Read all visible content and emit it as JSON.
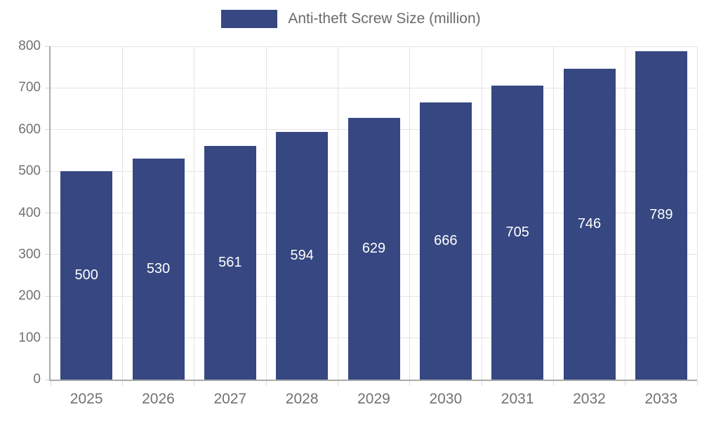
{
  "chart_data": {
    "type": "bar",
    "title": "",
    "categories": [
      "2025",
      "2026",
      "2027",
      "2028",
      "2029",
      "2030",
      "2031",
      "2032",
      "2033"
    ],
    "series": [
      {
        "name": "Anti-theft Screw Size (million)",
        "values": [
          500,
          530,
          561,
          594,
          629,
          666,
          705,
          746,
          789
        ],
        "color": "#364781"
      }
    ],
    "xlabel": "",
    "ylabel": "",
    "ylim": [
      0,
      800
    ],
    "ytick_step": 100,
    "grid": true,
    "legend_position": "top-center",
    "value_labels": "inside-center",
    "value_label_color": "#ffffff"
  },
  "style": {
    "background": "#ffffff",
    "grid_color": "#e3e3e3",
    "axis_line_color": "#ababab",
    "tick_color": "#d9d9d9",
    "axis_label_color": "#717171",
    "legend_text_color": "#6b6b6b"
  }
}
